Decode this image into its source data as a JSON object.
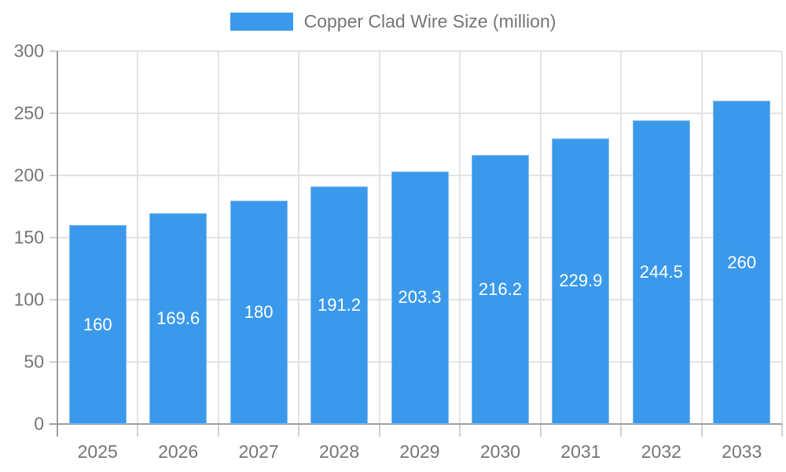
{
  "legend": {
    "label": "Copper Clad Wire Size (million)",
    "swatch_color": "#3b99ec"
  },
  "colors": {
    "bar": "#3b99ec",
    "grid": "#e3e3e3",
    "axis": "#9e9e9e",
    "tick": "#cfcfcf",
    "axis_text": "#757575",
    "value_text": "#ffffff"
  },
  "chart_data": {
    "type": "bar",
    "title": "Copper Clad Wire Size (million)",
    "categories": [
      "2025",
      "2026",
      "2027",
      "2028",
      "2029",
      "2030",
      "2031",
      "2032",
      "2033"
    ],
    "series": [
      {
        "name": "Copper Clad Wire Size (million)",
        "values": [
          160,
          169.6,
          180,
          191.2,
          203.3,
          216.2,
          229.9,
          244.5,
          260
        ],
        "labels": [
          "160",
          "169.6",
          "180",
          "191.2",
          "203.3",
          "216.2",
          "229.9",
          "244.5",
          "260"
        ]
      }
    ],
    "xlabel": "",
    "ylabel": "",
    "ylim": [
      0,
      300
    ],
    "ytick_step": 50,
    "ytick_labels": [
      "0",
      "50",
      "100",
      "150",
      "200",
      "250",
      "300"
    ],
    "grid": true,
    "legend_position": "top",
    "value_labels": "centered-in-bar"
  }
}
